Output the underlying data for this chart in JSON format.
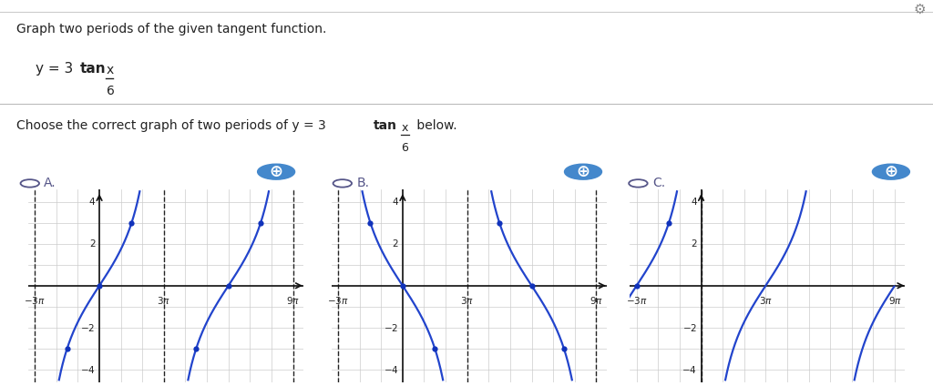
{
  "title_text": "Graph two periods of the given tangent function.",
  "formula_line1": "y = 3 tan",
  "frac_num": "x",
  "frac_den": "6",
  "choose_line": "Choose the correct graph of two periods of y = 3 tan",
  "choose_end": " below.",
  "options": [
    "A.",
    "B.",
    "C."
  ],
  "curve_color": "#2244cc",
  "dot_color": "#1133bb",
  "axis_color": "#111111",
  "grid_color": "#cccccc",
  "dashed_color": "#222222",
  "background_color": "#ffffff",
  "text_color": "#222222",
  "label_color": "#555588",
  "zoom_color": "#4488cc",
  "pi": 3.141592653589793,
  "amplitude": 3,
  "graph_A_flip": false,
  "graph_A_shift": 0,
  "graph_B_flip": true,
  "graph_B_shift": 0,
  "graph_C_flip": false,
  "graph_C_shift": -3
}
